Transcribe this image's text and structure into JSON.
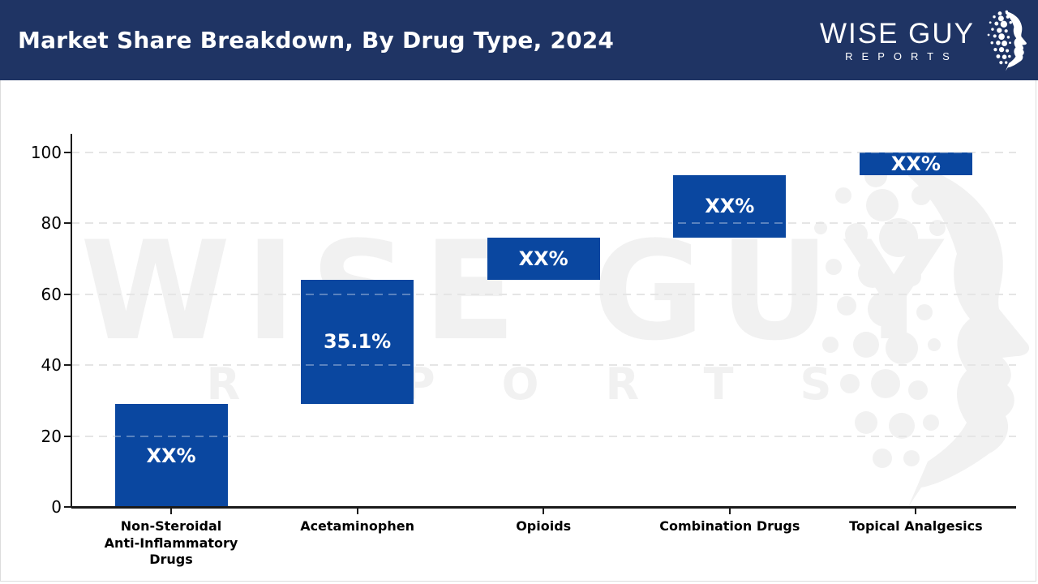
{
  "header": {
    "title": "Market Share Breakdown, By Drug Type, 2024",
    "logo": {
      "word": "WISE GUY",
      "sub": "REPORTS"
    }
  },
  "watermark": {
    "line1": "WISE GUY",
    "line2": "REPORTS"
  },
  "colors": {
    "header_bg": "#1f3464",
    "bar": "#0a47a0",
    "bar_label": "#ffffff",
    "gridline": "#d9d9d9",
    "axis": "#1a1a1a",
    "watermark": "#f1f1f1",
    "title_text": "#ffffff"
  },
  "chart_data": {
    "type": "bar",
    "subtype": "waterfall",
    "title": "Market Share Breakdown, By Drug Type, 2024",
    "categories": [
      "Non-Steroidal\nAnti-Inflammatory\nDrugs",
      "Acetaminophen",
      "Opioids",
      "Combination Drugs",
      "Topical Analgesics"
    ],
    "segments": [
      {
        "category": "Non-Steroidal Anti-Inflammatory Drugs",
        "start": 0,
        "end": 29.0,
        "value_label": "XX%"
      },
      {
        "category": "Acetaminophen",
        "start": 29.0,
        "end": 64.1,
        "value": 35.1,
        "value_label": "35.1%"
      },
      {
        "category": "Opioids",
        "start": 64.1,
        "end": 76.0,
        "value_label": "XX%"
      },
      {
        "category": "Combination Drugs",
        "start": 76.0,
        "end": 93.6,
        "value_label": "XX%"
      },
      {
        "category": "Topical Analgesics",
        "start": 93.6,
        "end": 100.0,
        "value_label": "XX%"
      }
    ],
    "yticks": [
      0,
      20,
      40,
      60,
      80,
      100
    ],
    "ylim": [
      0,
      100
    ],
    "xlabel": "",
    "ylabel": "",
    "grid": "dashed-horizontal",
    "legend": "none",
    "bar_color": "#0a47a0",
    "bar_label_color": "#ffffff"
  }
}
